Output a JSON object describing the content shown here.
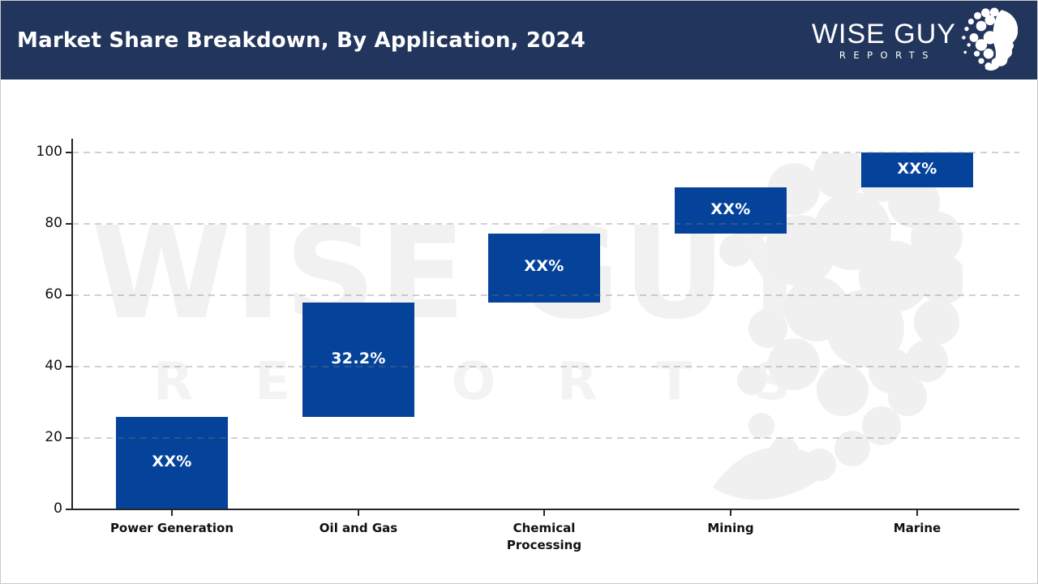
{
  "header": {
    "title": "Market Share Breakdown, By Application, 2024",
    "logo": {
      "line1": "WISE GUY",
      "line2": "REPORTS"
    }
  },
  "watermark": {
    "line1": "WISE GUY",
    "line2": "REPORTS"
  },
  "colors": {
    "header_bg": "#22355c",
    "bar": "#05439b",
    "axis": "#262626",
    "watermark": "#f1f1f1"
  },
  "chart_data": {
    "type": "bar",
    "subtype": "waterfall",
    "title": "Market Share Breakdown, By Application, 2024",
    "categories": [
      "Power Generation",
      "Oil and Gas",
      "Chemical\nProcessing",
      "Mining",
      "Marine"
    ],
    "segments": [
      {
        "category": "Power Generation",
        "start": 0,
        "end": 25.8,
        "value": 25.8,
        "label": "XX%"
      },
      {
        "category": "Oil and Gas",
        "start": 25.8,
        "end": 58.0,
        "value": 32.2,
        "label": "32.2%"
      },
      {
        "category": "Chemical Processing",
        "start": 58.0,
        "end": 77.3,
        "value": 19.3,
        "label": "XX%"
      },
      {
        "category": "Mining",
        "start": 77.3,
        "end": 90.2,
        "value": 12.9,
        "label": "XX%"
      },
      {
        "category": "Marine",
        "start": 90.2,
        "end": 100,
        "value": 9.8,
        "label": "XX%"
      }
    ],
    "xlabel": "",
    "ylabel": "",
    "y_ticks": [
      0,
      20,
      40,
      60,
      80,
      100
    ],
    "ylim": [
      0,
      104
    ],
    "grid": {
      "axis": "y",
      "style": "dashed",
      "over_bars": true
    },
    "legend": "none",
    "bar_color": "#05439b",
    "bar_label_color": "#ffffff"
  }
}
